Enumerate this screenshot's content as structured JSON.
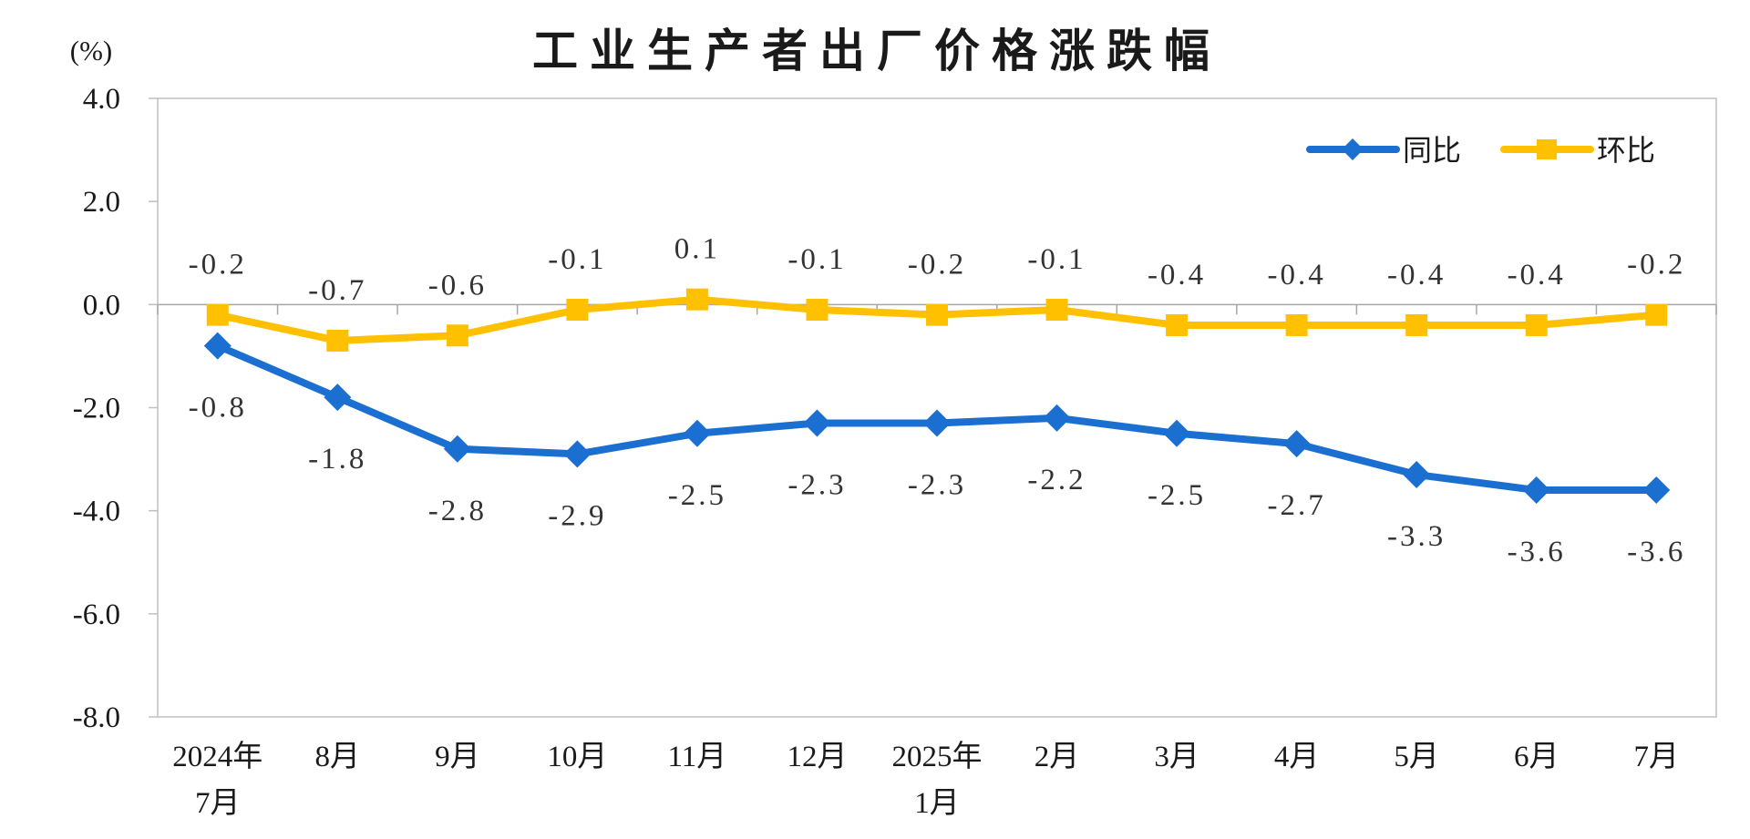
{
  "chart_data": {
    "type": "line",
    "title": "工业生产者出厂价格涨跌幅",
    "unit_label": "(%)",
    "ylim": [
      -8.0,
      4.0
    ],
    "ytick_step": 2.0,
    "ytick_labels": [
      "4.0",
      "2.0",
      "0.0",
      "-2.0",
      "-4.0",
      "-6.0",
      "-8.0"
    ],
    "grid": "zero-line-only",
    "legend_position": "top-right-inside",
    "categories": [
      {
        "line1": "2024年",
        "line2": "7月"
      },
      {
        "line1": "8月"
      },
      {
        "line1": "9月"
      },
      {
        "line1": "10月"
      },
      {
        "line1": "11月"
      },
      {
        "line1": "12月"
      },
      {
        "line1": "2025年",
        "line2": "1月"
      },
      {
        "line1": "2月"
      },
      {
        "line1": "3月"
      },
      {
        "line1": "4月"
      },
      {
        "line1": "5月"
      },
      {
        "line1": "6月"
      },
      {
        "line1": "7月"
      }
    ],
    "series": [
      {
        "id": "huanbi",
        "name": "环比",
        "color": "#FFC000",
        "marker": "square",
        "label_position": "above",
        "values": [
          -0.2,
          -0.7,
          -0.6,
          -0.1,
          0.1,
          -0.1,
          -0.2,
          -0.1,
          -0.4,
          -0.4,
          -0.4,
          -0.4,
          -0.2
        ],
        "labels": [
          "-0.2",
          "-0.7",
          "-0.6",
          "-0.1",
          "0.1",
          "-0.1",
          "-0.2",
          "-0.1",
          "-0.4",
          "-0.4",
          "-0.4",
          "-0.4",
          "-0.2"
        ]
      },
      {
        "id": "tongbi",
        "name": "同比",
        "color": "#1B6FD0",
        "marker": "diamond",
        "label_position": "below",
        "values": [
          -0.8,
          -1.8,
          -2.8,
          -2.9,
          -2.5,
          -2.3,
          -2.3,
          -2.2,
          -2.5,
          -2.7,
          -3.3,
          -3.6,
          -3.6
        ],
        "labels": [
          "-0.8",
          "-1.8",
          "-2.8",
          "-2.9",
          "-2.5",
          "-2.3",
          "-2.3",
          "-2.2",
          "-2.5",
          "-2.7",
          "-3.3",
          "-3.6",
          "-3.6"
        ]
      }
    ],
    "legend_order": [
      "tongbi",
      "huanbi"
    ],
    "colors": {
      "border": "#C0C0C0",
      "zero_line": "#A6A6A6",
      "tick": "#A6A6A6",
      "text": "#1A1A1A",
      "data_label": "#333333",
      "background": "#FFFFFF"
    }
  }
}
